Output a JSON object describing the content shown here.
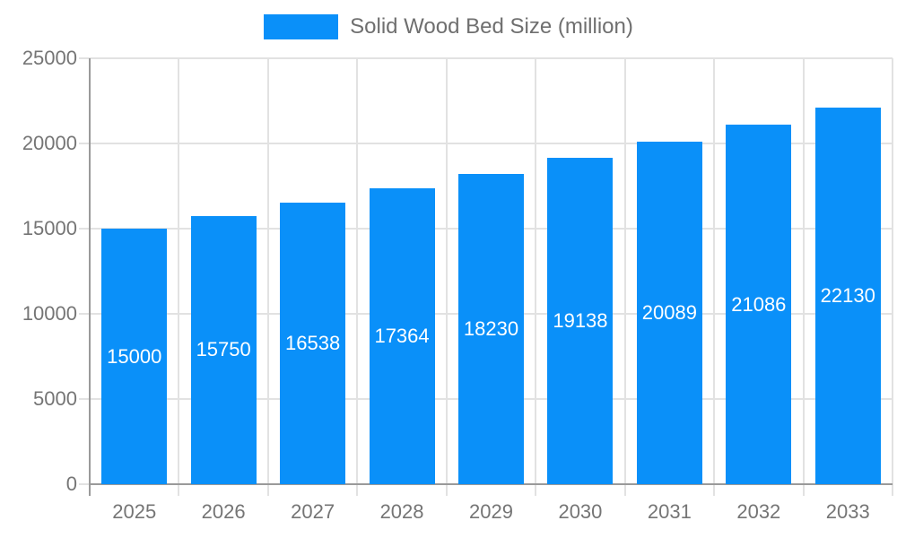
{
  "legend": {
    "label": "Solid Wood Bed Size (million)"
  },
  "colors": {
    "bar": "#0a90f9",
    "grid": "#e2e2e2",
    "axis": "#9a9a9a",
    "tick_text": "#757575",
    "legend_text": "#6f6f6f",
    "value_label_text": "#ffffff",
    "background": "#ffffff"
  },
  "chart_data": {
    "type": "bar",
    "title": "",
    "legend_entries": [
      "Solid Wood Bed Size (million)"
    ],
    "legend_position": "top-center",
    "categories": [
      "2025",
      "2026",
      "2027",
      "2028",
      "2029",
      "2030",
      "2031",
      "2032",
      "2033"
    ],
    "series": [
      {
        "name": "Solid Wood Bed Size (million)",
        "values": [
          15000,
          15750,
          16538,
          17364,
          18230,
          19138,
          20089,
          21086,
          22130
        ]
      }
    ],
    "value_labels": [
      "15000",
      "15750",
      "16538",
      "17364",
      "18230",
      "19138",
      "20089",
      "21086",
      "22130"
    ],
    "value_label_position": "inside-middle",
    "xlabel": "",
    "ylabel": "",
    "ylim": [
      0,
      25000
    ],
    "yticks": [
      "0",
      "5000",
      "10000",
      "15000",
      "20000",
      "25000"
    ],
    "grid": true
  }
}
